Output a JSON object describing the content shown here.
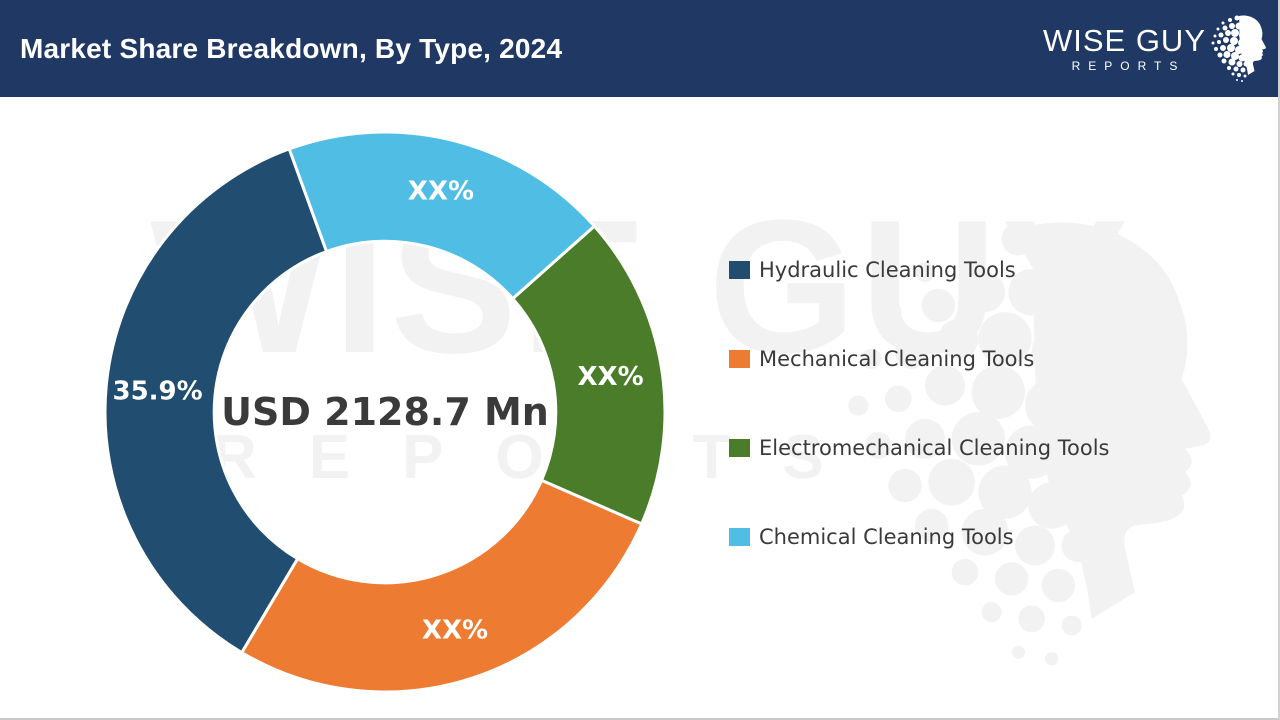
{
  "header": {
    "title": "Market Share Breakdown, By Type, 2024",
    "background_color": "#203864",
    "logo": {
      "wordmark": "WISE GUY",
      "subtext": "REPORTS"
    }
  },
  "watermark": {
    "wordmark": "WISE GUY",
    "subtext": "REPORTS"
  },
  "chart_data": {
    "type": "pie",
    "subtype": "donut",
    "title": "Market Share Breakdown, By Type, 2024",
    "center_label": "USD 2128.7 Mn",
    "start_angle_deg": 110,
    "direction": "counterclockwise",
    "inner_radius_ratio": 0.61,
    "legend_position": "right",
    "separator_color": "#ffffff",
    "label_text_color": "#ffffff",
    "segments": [
      {
        "label": "Hydraulic Cleaning Tools",
        "value": 35.9,
        "display_label": "35.9%",
        "color": "#204D70"
      },
      {
        "label": "Mechanical Cleaning Tools",
        "value": 27.0,
        "display_label": "XX%",
        "color": "#ED7C32"
      },
      {
        "label": "Electromechanical Cleaning Tools",
        "value": 18.1,
        "display_label": "XX%",
        "color": "#4A7C29"
      },
      {
        "label": "Chemical Cleaning Tools",
        "value": 19.0,
        "display_label": "XX%",
        "color": "#4FBDE4"
      }
    ]
  }
}
